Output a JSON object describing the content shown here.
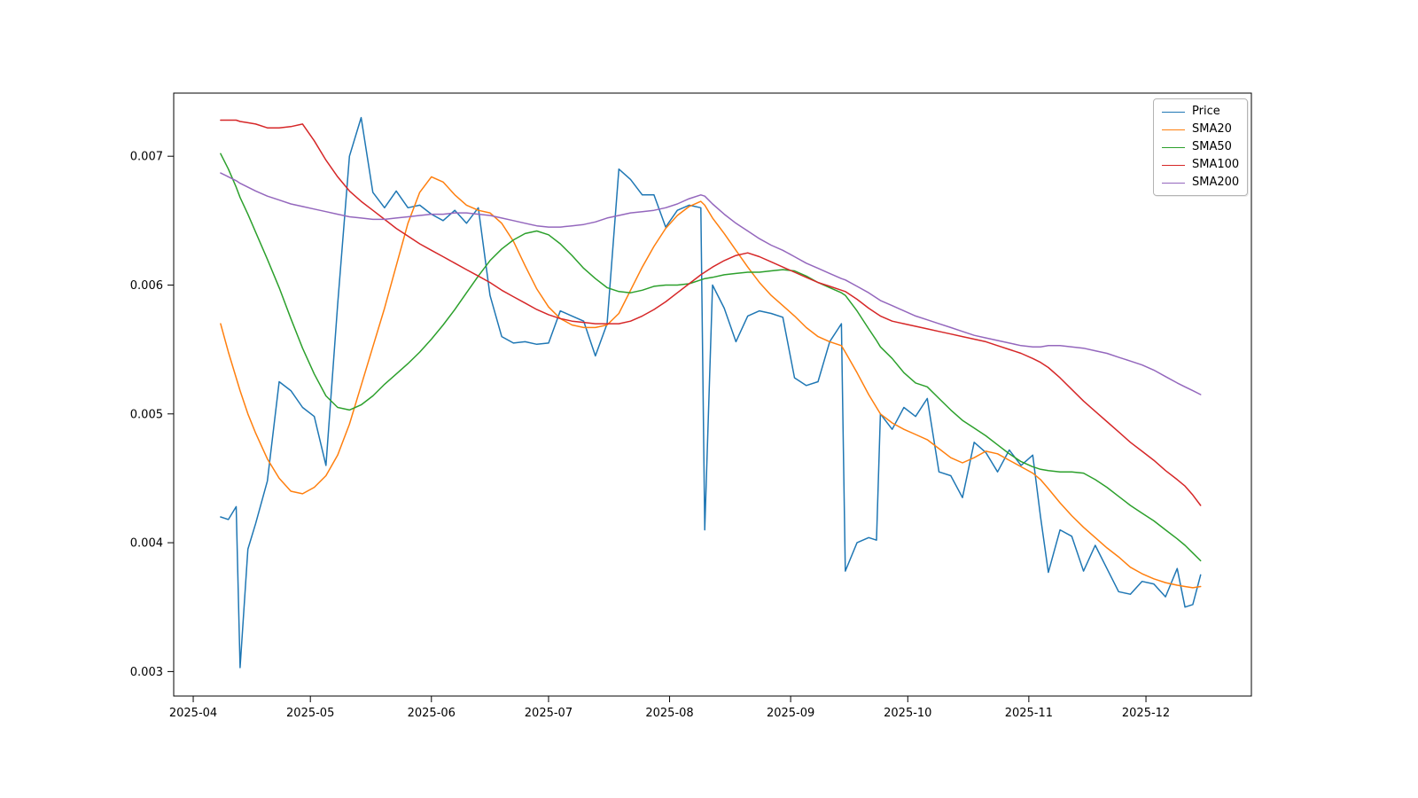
{
  "figure": {
    "background": "#ffffff",
    "title": ""
  },
  "chart_data": {
    "type": "line",
    "title": "",
    "xlabel": "",
    "ylabel": "",
    "grid": false,
    "legend_position": "upper right",
    "xlim": [
      "2025-03-27",
      "2025-12-28"
    ],
    "ylim": [
      0.00281,
      0.00749
    ],
    "x_ticks": [
      {
        "label": "2025-04",
        "date": "2025-04-01"
      },
      {
        "label": "2025-05",
        "date": "2025-05-01"
      },
      {
        "label": "2025-06",
        "date": "2025-06-01"
      },
      {
        "label": "2025-07",
        "date": "2025-07-01"
      },
      {
        "label": "2025-08",
        "date": "2025-08-01"
      },
      {
        "label": "2025-09",
        "date": "2025-09-01"
      },
      {
        "label": "2025-10",
        "date": "2025-10-01"
      },
      {
        "label": "2025-11",
        "date": "2025-11-01"
      },
      {
        "label": "2025-12",
        "date": "2025-12-01"
      }
    ],
    "y_ticks": [
      {
        "label": "0.003",
        "value": 0.003
      },
      {
        "label": "0.004",
        "value": 0.004
      },
      {
        "label": "0.005",
        "value": 0.005
      },
      {
        "label": "0.006",
        "value": 0.006
      },
      {
        "label": "0.007",
        "value": 0.007
      }
    ],
    "x": [
      "2025-04-08",
      "2025-04-10",
      "2025-04-12",
      "2025-04-13",
      "2025-04-15",
      "2025-04-17",
      "2025-04-20",
      "2025-04-23",
      "2025-04-26",
      "2025-04-29",
      "2025-05-02",
      "2025-05-05",
      "2025-05-08",
      "2025-05-11",
      "2025-05-14",
      "2025-05-17",
      "2025-05-20",
      "2025-05-23",
      "2025-05-26",
      "2025-05-29",
      "2025-06-01",
      "2025-06-04",
      "2025-06-07",
      "2025-06-10",
      "2025-06-13",
      "2025-06-16",
      "2025-06-19",
      "2025-06-22",
      "2025-06-25",
      "2025-06-28",
      "2025-07-01",
      "2025-07-04",
      "2025-07-07",
      "2025-07-10",
      "2025-07-13",
      "2025-07-16",
      "2025-07-19",
      "2025-07-22",
      "2025-07-25",
      "2025-07-28",
      "2025-07-31",
      "2025-08-03",
      "2025-08-06",
      "2025-08-09",
      "2025-08-10",
      "2025-08-12",
      "2025-08-15",
      "2025-08-18",
      "2025-08-21",
      "2025-08-24",
      "2025-08-27",
      "2025-08-30",
      "2025-09-02",
      "2025-09-05",
      "2025-09-08",
      "2025-09-11",
      "2025-09-14",
      "2025-09-15",
      "2025-09-18",
      "2025-09-21",
      "2025-09-23",
      "2025-09-24",
      "2025-09-27",
      "2025-09-30",
      "2025-10-03",
      "2025-10-06",
      "2025-10-09",
      "2025-10-12",
      "2025-10-15",
      "2025-10-18",
      "2025-10-21",
      "2025-10-24",
      "2025-10-27",
      "2025-10-30",
      "2025-11-02",
      "2025-11-04",
      "2025-11-06",
      "2025-11-09",
      "2025-11-12",
      "2025-11-15",
      "2025-11-18",
      "2025-11-21",
      "2025-11-24",
      "2025-11-27",
      "2025-11-30",
      "2025-12-03",
      "2025-12-06",
      "2025-12-09",
      "2025-12-11",
      "2025-12-13",
      "2025-12-15"
    ],
    "series": [
      {
        "name": "Price",
        "color": "#1f77b4",
        "values": [
          0.0042,
          0.00418,
          0.00428,
          0.00303,
          0.00395,
          0.00415,
          0.00448,
          0.00525,
          0.00518,
          0.00505,
          0.00498,
          0.0046,
          0.00585,
          0.007,
          0.0073,
          0.00672,
          0.0066,
          0.00673,
          0.0066,
          0.00662,
          0.00655,
          0.0065,
          0.00658,
          0.00648,
          0.0066,
          0.00592,
          0.0056,
          0.00555,
          0.00556,
          0.00554,
          0.00555,
          0.0058,
          0.00576,
          0.00572,
          0.00545,
          0.0057,
          0.0069,
          0.00682,
          0.0067,
          0.0067,
          0.00645,
          0.00658,
          0.00662,
          0.0066,
          0.0041,
          0.006,
          0.00582,
          0.00556,
          0.00576,
          0.0058,
          0.00578,
          0.00575,
          0.00528,
          0.00522,
          0.00525,
          0.00556,
          0.0057,
          0.00378,
          0.004,
          0.00404,
          0.00402,
          0.005,
          0.00488,
          0.00505,
          0.00498,
          0.00512,
          0.00455,
          0.00452,
          0.00435,
          0.00478,
          0.0047,
          0.00455,
          0.00472,
          0.0046,
          0.00468,
          0.0042,
          0.00377,
          0.0041,
          0.00405,
          0.00378,
          0.00398,
          0.0038,
          0.00362,
          0.0036,
          0.0037,
          0.00368,
          0.00358,
          0.0038,
          0.0035,
          0.00352,
          0.00375
        ]
      },
      {
        "name": "SMA20",
        "color": "#ff7f0e",
        "values": [
          0.0057,
          0.00548,
          0.00528,
          0.00518,
          0.005,
          0.00485,
          0.00465,
          0.0045,
          0.0044,
          0.00438,
          0.00443,
          0.00452,
          0.00468,
          0.00492,
          0.00522,
          0.00552,
          0.00582,
          0.00615,
          0.00648,
          0.00672,
          0.00684,
          0.0068,
          0.0067,
          0.00662,
          0.00658,
          0.00656,
          0.00648,
          0.00634,
          0.00615,
          0.00597,
          0.00583,
          0.00574,
          0.00569,
          0.00567,
          0.00567,
          0.00569,
          0.00578,
          0.00596,
          0.00614,
          0.0063,
          0.00644,
          0.00654,
          0.00661,
          0.00665,
          0.00662,
          0.00652,
          0.0064,
          0.00627,
          0.00614,
          0.00602,
          0.00592,
          0.00584,
          0.00576,
          0.00567,
          0.0056,
          0.00556,
          0.00553,
          0.00548,
          0.00532,
          0.00515,
          0.00505,
          0.005,
          0.00493,
          0.00488,
          0.00484,
          0.0048,
          0.00473,
          0.00466,
          0.00462,
          0.00466,
          0.00471,
          0.00469,
          0.00464,
          0.00459,
          0.00454,
          0.00449,
          0.00442,
          0.00431,
          0.00421,
          0.00412,
          0.00404,
          0.00396,
          0.00389,
          0.00381,
          0.00376,
          0.00372,
          0.00369,
          0.00367,
          0.00366,
          0.00365,
          0.00366
        ]
      },
      {
        "name": "SMA50",
        "color": "#2ca02c",
        "values": [
          0.00702,
          0.0069,
          0.00676,
          0.00668,
          0.00655,
          0.00641,
          0.0062,
          0.00598,
          0.00574,
          0.00551,
          0.00531,
          0.00514,
          0.00505,
          0.00503,
          0.00507,
          0.00514,
          0.00523,
          0.00531,
          0.00539,
          0.00548,
          0.00558,
          0.00569,
          0.00581,
          0.00594,
          0.00607,
          0.00619,
          0.00628,
          0.00635,
          0.0064,
          0.00642,
          0.00639,
          0.00632,
          0.00623,
          0.00613,
          0.00605,
          0.00598,
          0.00595,
          0.00594,
          0.00596,
          0.00599,
          0.006,
          0.006,
          0.00601,
          0.00604,
          0.00605,
          0.00606,
          0.00608,
          0.00609,
          0.0061,
          0.0061,
          0.00611,
          0.00612,
          0.00611,
          0.00607,
          0.00602,
          0.00598,
          0.00594,
          0.00592,
          0.0058,
          0.00566,
          0.00557,
          0.00552,
          0.00543,
          0.00532,
          0.00524,
          0.00521,
          0.00512,
          0.00503,
          0.00495,
          0.00489,
          0.00483,
          0.00476,
          0.00469,
          0.00463,
          0.00459,
          0.00457,
          0.00456,
          0.00455,
          0.00455,
          0.00454,
          0.00449,
          0.00443,
          0.00436,
          0.00429,
          0.00423,
          0.00417,
          0.0041,
          0.00403,
          0.00398,
          0.00392,
          0.00386
        ]
      },
      {
        "name": "SMA100",
        "color": "#d62728",
        "values": [
          0.00728,
          0.00728,
          0.00728,
          0.00727,
          0.00726,
          0.00725,
          0.00722,
          0.00722,
          0.00723,
          0.00725,
          0.00712,
          0.00697,
          0.00684,
          0.00673,
          0.00665,
          0.00658,
          0.00651,
          0.00644,
          0.00638,
          0.00632,
          0.00627,
          0.00622,
          0.00617,
          0.00612,
          0.00607,
          0.00602,
          0.00596,
          0.00591,
          0.00586,
          0.00581,
          0.00577,
          0.00574,
          0.00572,
          0.00571,
          0.0057,
          0.0057,
          0.0057,
          0.00572,
          0.00576,
          0.00581,
          0.00587,
          0.00594,
          0.00601,
          0.00608,
          0.0061,
          0.00614,
          0.00619,
          0.00623,
          0.00625,
          0.00622,
          0.00618,
          0.00614,
          0.0061,
          0.00606,
          0.00602,
          0.00599,
          0.00596,
          0.00595,
          0.00589,
          0.00582,
          0.00578,
          0.00576,
          0.00572,
          0.0057,
          0.00568,
          0.00566,
          0.00564,
          0.00562,
          0.0056,
          0.00558,
          0.00556,
          0.00553,
          0.0055,
          0.00547,
          0.00543,
          0.0054,
          0.00536,
          0.00528,
          0.00519,
          0.0051,
          0.00502,
          0.00494,
          0.00486,
          0.00478,
          0.00471,
          0.00464,
          0.00456,
          0.00449,
          0.00444,
          0.00437,
          0.00429
        ]
      },
      {
        "name": "SMA200",
        "color": "#9467bd",
        "values": [
          0.00687,
          0.00684,
          0.00681,
          0.00679,
          0.00676,
          0.00673,
          0.00669,
          0.00666,
          0.00663,
          0.00661,
          0.00659,
          0.00657,
          0.00655,
          0.00653,
          0.00652,
          0.00651,
          0.00651,
          0.00652,
          0.00653,
          0.00654,
          0.00655,
          0.00655,
          0.00656,
          0.00656,
          0.00655,
          0.00654,
          0.00652,
          0.0065,
          0.00648,
          0.00646,
          0.00645,
          0.00645,
          0.00646,
          0.00647,
          0.00649,
          0.00652,
          0.00654,
          0.00656,
          0.00657,
          0.00658,
          0.0066,
          0.00663,
          0.00667,
          0.0067,
          0.00669,
          0.00663,
          0.00655,
          0.00648,
          0.00642,
          0.00636,
          0.00631,
          0.00627,
          0.00622,
          0.00617,
          0.00613,
          0.00609,
          0.00605,
          0.00604,
          0.00599,
          0.00594,
          0.0059,
          0.00588,
          0.00584,
          0.0058,
          0.00576,
          0.00573,
          0.0057,
          0.00567,
          0.00564,
          0.00561,
          0.00559,
          0.00557,
          0.00555,
          0.00553,
          0.00552,
          0.00552,
          0.00553,
          0.00553,
          0.00552,
          0.00551,
          0.00549,
          0.00547,
          0.00544,
          0.00541,
          0.00538,
          0.00534,
          0.00529,
          0.00524,
          0.00521,
          0.00518,
          0.00515
        ]
      }
    ]
  }
}
